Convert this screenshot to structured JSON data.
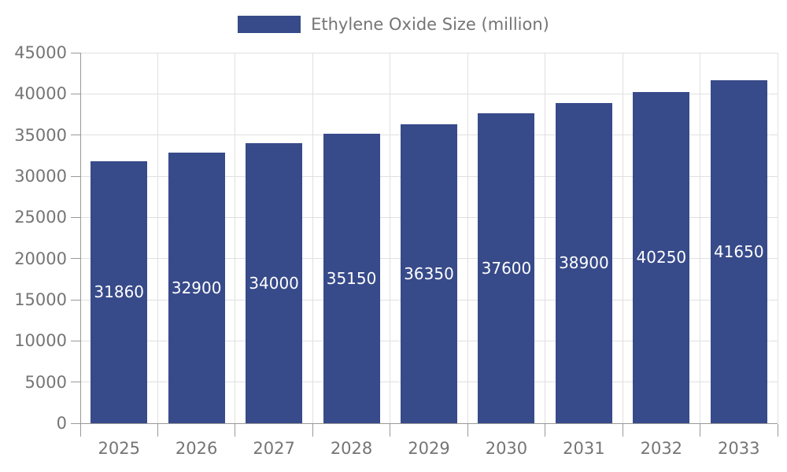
{
  "chart_data": {
    "type": "bar",
    "title": "",
    "legend": "Ethylene Oxide Size (million)",
    "legend_position": "top-center",
    "categories": [
      "2025",
      "2026",
      "2027",
      "2028",
      "2029",
      "2030",
      "2031",
      "2032",
      "2033"
    ],
    "values": [
      31860,
      32900,
      34000,
      35150,
      36350,
      37600,
      38900,
      40250,
      41650
    ],
    "xlabel": "",
    "ylabel": "",
    "ylim": [
      0,
      45000
    ],
    "ytick_step": 5000,
    "ytick_labels": [
      "0",
      "5000",
      "10000",
      "15000",
      "20000",
      "25000",
      "30000",
      "35000",
      "40000",
      "45000"
    ],
    "grid": true,
    "value_labels": "inside-middle",
    "colors": {
      "bar": "#374a8a",
      "grid": "#e0e0e0",
      "axis": "#999999",
      "tick_label": "#757575",
      "legend_text": "#757575",
      "value_label": "#ffffff",
      "background": "#ffffff"
    }
  }
}
